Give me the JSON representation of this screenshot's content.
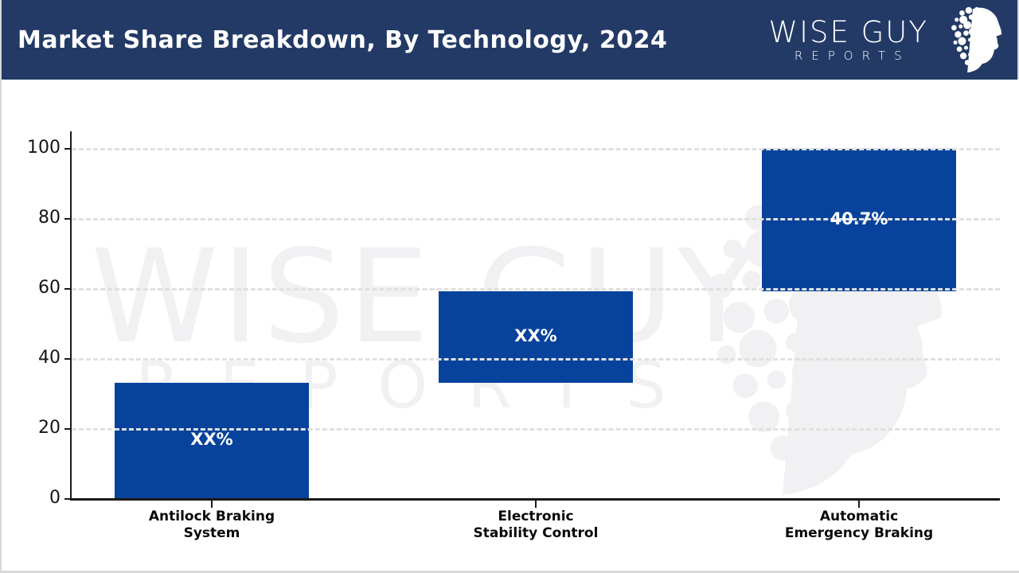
{
  "header": {
    "title": "Market Share Breakdown, By Technology, 2024"
  },
  "logo": {
    "name_top": "WISE GUY",
    "name_bottom": "REPORTS"
  },
  "watermark": {
    "line1": "WISE GUY",
    "line2": "REPORTS"
  },
  "chart_data": {
    "type": "bar",
    "variant": "waterfall-breakdown",
    "title": "Market Share Breakdown, By Technology, 2024",
    "categories": [
      [
        "Antilock Braking",
        "System"
      ],
      [
        "Electronic",
        "Stability Control"
      ],
      [
        "Automatic",
        "Emergency Braking"
      ]
    ],
    "segments": [
      {
        "category": "Antilock Braking System",
        "start": 0,
        "end": 33.2,
        "label": "XX%"
      },
      {
        "category": "Electronic Stability Control",
        "start": 33.2,
        "end": 59.3,
        "label": "XX%"
      },
      {
        "category": "Automatic Emergency Braking",
        "start": 59.3,
        "end": 100,
        "label": "40.7%"
      }
    ],
    "ylim": [
      0,
      100
    ],
    "yticks": [
      0,
      20,
      40,
      60,
      80,
      100
    ],
    "xlabel": "",
    "ylabel": "",
    "legend": "none",
    "grid": "horizontal-dashed",
    "colors": {
      "bar": "#07439c",
      "grid": "#e0e0e0",
      "axis": "#1a1a1a",
      "bar_label": "#ffffff",
      "header_bg": "#233a66",
      "watermark": "#f1f1f3"
    }
  }
}
